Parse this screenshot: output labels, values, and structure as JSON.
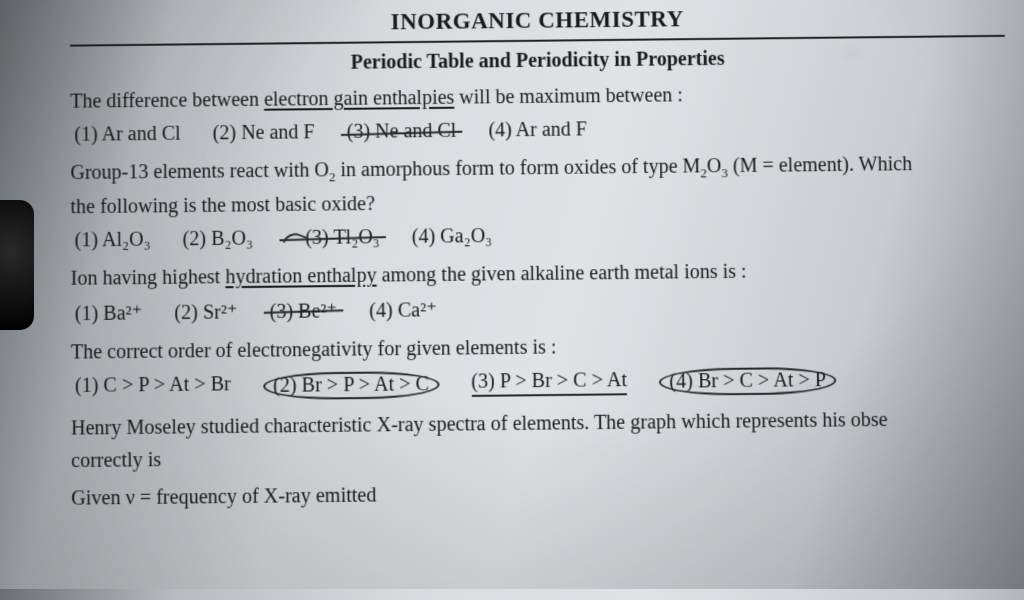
{
  "header": {
    "chapter": "INORGANIC CHEMISTRY",
    "section": "Periodic Table and Periodicity in Properties"
  },
  "q1": {
    "text_a": "The difference between ",
    "ul": "electron gain enthalpies",
    "text_b": " will be maximum between :",
    "opts": [
      "(1) Ar and Cl",
      "(2) Ne and F",
      "(3) Ne and Cl",
      "(4) Ar and F"
    ]
  },
  "q2": {
    "text_a": "Group-13 elements react with O",
    "sub1": "2",
    "text_b": " in amorphous form to form oxides of type M",
    "sub2": "2",
    "text_c": "O",
    "sub3": "3",
    "text_d": " (M = element). Which",
    "line2": "the following is the most basic oxide?",
    "opts": [
      "(1) Al₂O₃",
      "(2) B₂O₃",
      "(3) Tl₂O₃",
      "(4) Ga₂O₃"
    ]
  },
  "q3": {
    "text_a": "Ion having highest ",
    "ul": "hydration enthalpy",
    "text_b": " among the given alkaline earth metal ions is :",
    "opts": [
      "(1) Ba²⁺",
      "(2) Sr²⁺",
      "(3) Be²⁺",
      "(4) Ca²⁺"
    ]
  },
  "q4": {
    "text": "The correct order of electronegativity for given elements is :",
    "opts": [
      "(1) C > P > At > Br",
      "(2) Br > P > At > C",
      "(3) P > Br > C > At",
      "(4) Br > C > At > P"
    ]
  },
  "q5": {
    "text": "Henry Moseley studied characteristic X-ray spectra of elements. The graph which represents his obse",
    "line2": "correctly is"
  },
  "q6": {
    "text": "Given ν = frequency of X-ray emitted"
  },
  "blur": "..."
}
